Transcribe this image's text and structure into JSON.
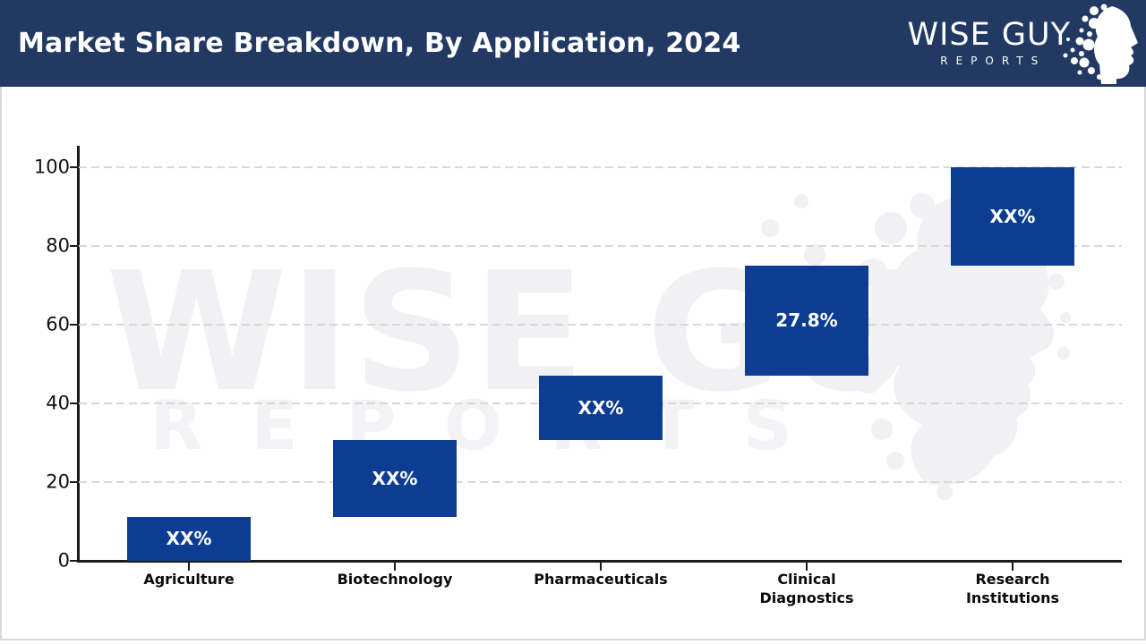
{
  "header": {
    "title": "Market Share Breakdown, By Application, 2024",
    "logo": {
      "line1": "WISE GUY",
      "line2": "REPORTS"
    }
  },
  "watermark": {
    "line1": "WISE GUY",
    "line2": "REPORTS"
  },
  "chart_data": {
    "type": "bar",
    "subtype": "floating-waterfall",
    "title": "Market Share Breakdown, By Application, 2024",
    "categories": [
      "Agriculture",
      "Biotechnology",
      "Pharmaceuticals",
      "Clinical\nDiagnostics",
      "Research\nInstitutions"
    ],
    "segments": [
      {
        "category": "Agriculture",
        "start": 0,
        "end": 11.2,
        "value": 11.2,
        "label": "XX%"
      },
      {
        "category": "Biotechnology",
        "start": 11.2,
        "end": 30.7,
        "value": 19.5,
        "label": "XX%"
      },
      {
        "category": "Pharmaceuticals",
        "start": 30.7,
        "end": 47.2,
        "value": 16.5,
        "label": "XX%"
      },
      {
        "category": "Clinical Diagnostics",
        "start": 47.2,
        "end": 75.0,
        "value": 27.8,
        "label": "27.8%"
      },
      {
        "category": "Research Institutions",
        "start": 75.0,
        "end": 100.0,
        "value": 25.0,
        "label": "XX%"
      }
    ],
    "yticks": [
      0,
      20,
      40,
      60,
      80,
      100
    ],
    "ylim": [
      0,
      105
    ],
    "xlabel": "",
    "ylabel": "",
    "grid": "horizontal-dashed",
    "legend": "none",
    "bar_color": "#0c3d92",
    "bar_label_color": "#ffffff",
    "accent_header_color": "#223a63",
    "grid_color": "#d8d8d8",
    "axis_color": "#1a1a1a"
  }
}
